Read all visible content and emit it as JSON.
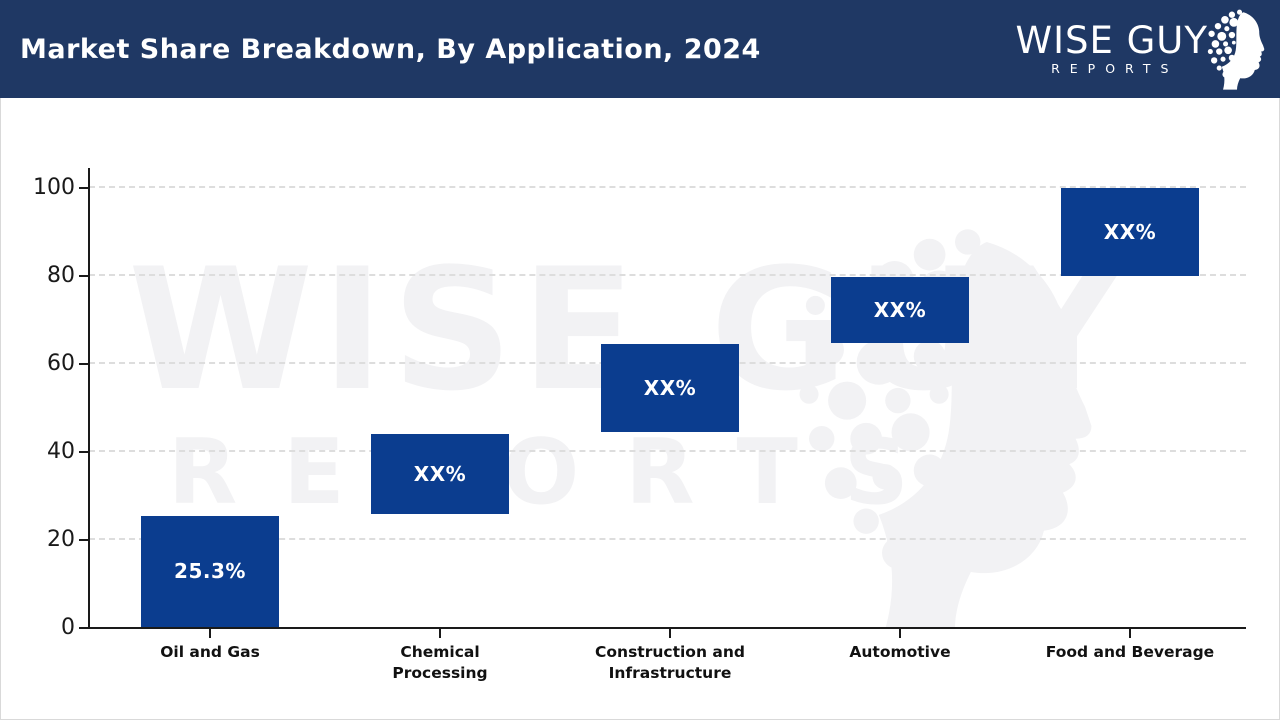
{
  "header": {
    "title": "Market Share Breakdown, By Application, 2024",
    "logo": {
      "line1": "WISE GUY",
      "line2": "REPORTS"
    }
  },
  "watermark": {
    "line1": "WISE GUY",
    "line2": "REPORTS"
  },
  "colors": {
    "header_bg": "#1F3864",
    "bar": "#0B3D8F",
    "bar_label": "#FFFFFF",
    "grid": "#DDDDDD",
    "axis": "#1A1A1A",
    "watermark": "#F2F2F4"
  },
  "chart_data": {
    "type": "bar",
    "subtype": "waterfall",
    "title": "Market Share Breakdown, By Application, 2024",
    "categories": [
      "Oil and Gas",
      "Chemical Processing",
      "Construction and Infrastructure",
      "Automotive",
      "Food and Beverage"
    ],
    "category_display_lines": [
      [
        "Oil and Gas"
      ],
      [
        "Chemical",
        "Processing"
      ],
      [
        "Construction and",
        "Infrastructure"
      ],
      [
        "Automotive"
      ],
      [
        "Food and Beverage"
      ]
    ],
    "segments": [
      {
        "category": "Oil and Gas",
        "start": 0,
        "end": 25.3,
        "value_label": "25.3%"
      },
      {
        "category": "Chemical Processing",
        "start": 25.7,
        "end": 43.9,
        "value_label": "XX%"
      },
      {
        "category": "Construction and Infrastructure",
        "start": 44.3,
        "end": 64.3,
        "value_label": "XX%"
      },
      {
        "category": "Automotive",
        "start": 64.5,
        "end": 79.5,
        "value_label": "XX%"
      },
      {
        "category": "Food and Beverage",
        "start": 79.8,
        "end": 99.8,
        "value_label": "XX%"
      }
    ],
    "ylim": [
      0,
      100
    ],
    "yticks": [
      0,
      20,
      40,
      60,
      80,
      100
    ],
    "grid": "horizontal dashed, at yticks above 0",
    "legend": "none"
  }
}
